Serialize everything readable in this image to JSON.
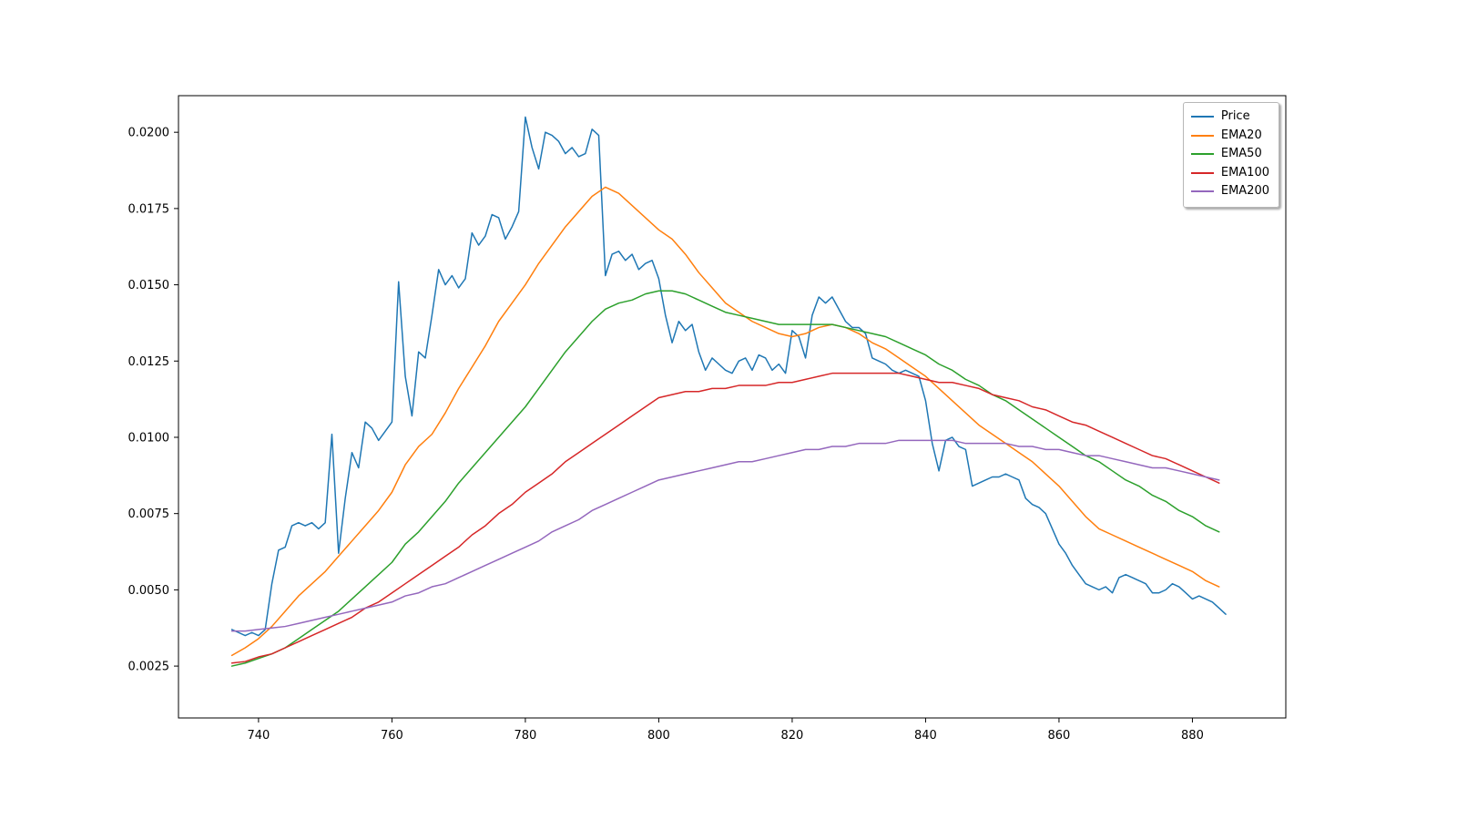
{
  "figure": {
    "background": "#ffffff"
  },
  "chart_data": {
    "type": "line",
    "title": "",
    "xlabel": "",
    "ylabel": "",
    "grid": false,
    "legend_position": "upper right",
    "axes_color": "#000000",
    "xlim": [
      728,
      894
    ],
    "ylim": [
      0.0008,
      0.0212
    ],
    "x_ticks": [
      740,
      760,
      780,
      800,
      820,
      840,
      860,
      880
    ],
    "x_tick_labels": [
      "740",
      "760",
      "780",
      "800",
      "820",
      "840",
      "860",
      "880"
    ],
    "y_ticks": [
      0.0025,
      0.005,
      0.0075,
      0.01,
      0.0125,
      0.015,
      0.0175,
      0.02
    ],
    "y_tick_labels": [
      "0.0025",
      "0.0050",
      "0.0075",
      "0.0100",
      "0.0125",
      "0.0150",
      "0.0175",
      "0.0200"
    ],
    "series": [
      {
        "name": "Price",
        "color": "#1f77b4",
        "x_start": 736,
        "x_step": 1,
        "y": [
          0.0037,
          0.0036,
          0.0035,
          0.0036,
          0.0035,
          0.0037,
          0.0052,
          0.0063,
          0.0064,
          0.0071,
          0.0072,
          0.0071,
          0.0072,
          0.007,
          0.0072,
          0.0101,
          0.0062,
          0.008,
          0.0095,
          0.009,
          0.0105,
          0.0103,
          0.0099,
          0.0102,
          0.0105,
          0.0151,
          0.012,
          0.0107,
          0.0128,
          0.0126,
          0.014,
          0.0155,
          0.015,
          0.0153,
          0.0149,
          0.0152,
          0.0167,
          0.0163,
          0.0166,
          0.0173,
          0.0172,
          0.0165,
          0.0169,
          0.0174,
          0.0205,
          0.0195,
          0.0188,
          0.02,
          0.0199,
          0.0197,
          0.0193,
          0.0195,
          0.0192,
          0.0193,
          0.0201,
          0.0199,
          0.0153,
          0.016,
          0.0161,
          0.0158,
          0.016,
          0.0155,
          0.0157,
          0.0158,
          0.0152,
          0.014,
          0.0131,
          0.0138,
          0.0135,
          0.0137,
          0.0128,
          0.0122,
          0.0126,
          0.0124,
          0.0122,
          0.0121,
          0.0125,
          0.0126,
          0.0122,
          0.0127,
          0.0126,
          0.0122,
          0.0124,
          0.0121,
          0.0135,
          0.0133,
          0.0126,
          0.014,
          0.0146,
          0.0144,
          0.0146,
          0.0142,
          0.0138,
          0.0136,
          0.0136,
          0.0134,
          0.0126,
          0.0125,
          0.0124,
          0.0122,
          0.0121,
          0.0122,
          0.0121,
          0.012,
          0.0112,
          0.0098,
          0.0089,
          0.0099,
          0.01,
          0.0097,
          0.0096,
          0.0084,
          0.0085,
          0.0086,
          0.0087,
          0.0087,
          0.0088,
          0.0087,
          0.0086,
          0.008,
          0.0078,
          0.0077,
          0.0075,
          0.007,
          0.0065,
          0.0062,
          0.0058,
          0.0055,
          0.0052,
          0.0051,
          0.005,
          0.0051,
          0.0049,
          0.0054,
          0.0055,
          0.0054,
          0.0053,
          0.0052,
          0.0049,
          0.0049,
          0.005,
          0.0052,
          0.0051,
          0.0049,
          0.0047,
          0.0048,
          0.0047,
          0.0046,
          0.0044,
          0.0042
        ]
      },
      {
        "name": "EMA20",
        "color": "#ff7f0e",
        "x_start": 736,
        "x_step": 2,
        "y": [
          0.00285,
          0.0031,
          0.0034,
          0.0038,
          0.0043,
          0.0048,
          0.0052,
          0.0056,
          0.0061,
          0.0066,
          0.0071,
          0.0076,
          0.0082,
          0.0091,
          0.0097,
          0.0101,
          0.0108,
          0.0116,
          0.0123,
          0.013,
          0.0138,
          0.0144,
          0.015,
          0.0157,
          0.0163,
          0.0169,
          0.0174,
          0.0179,
          0.0182,
          0.018,
          0.0176,
          0.0172,
          0.0168,
          0.0165,
          0.016,
          0.0154,
          0.0149,
          0.0144,
          0.0141,
          0.0138,
          0.0136,
          0.0134,
          0.0133,
          0.0134,
          0.0136,
          0.0137,
          0.0136,
          0.0134,
          0.0131,
          0.0129,
          0.0126,
          0.0123,
          0.012,
          0.0116,
          0.0112,
          0.0108,
          0.0104,
          0.0101,
          0.0098,
          0.0095,
          0.0092,
          0.0088,
          0.0084,
          0.0079,
          0.0074,
          0.007,
          0.0068,
          0.0066,
          0.0064,
          0.0062,
          0.006,
          0.0058,
          0.0056,
          0.0053,
          0.0051
        ]
      },
      {
        "name": "EMA50",
        "color": "#2ca02c",
        "x_start": 736,
        "x_step": 2,
        "y": [
          0.0025,
          0.0026,
          0.00275,
          0.0029,
          0.0031,
          0.0034,
          0.0037,
          0.004,
          0.0043,
          0.0047,
          0.0051,
          0.0055,
          0.0059,
          0.0065,
          0.0069,
          0.0074,
          0.0079,
          0.0085,
          0.009,
          0.0095,
          0.01,
          0.0105,
          0.011,
          0.0116,
          0.0122,
          0.0128,
          0.0133,
          0.0138,
          0.0142,
          0.0144,
          0.0145,
          0.0147,
          0.0148,
          0.0148,
          0.0147,
          0.0145,
          0.0143,
          0.0141,
          0.014,
          0.0139,
          0.0138,
          0.0137,
          0.0137,
          0.0137,
          0.0137,
          0.0137,
          0.0136,
          0.0135,
          0.0134,
          0.0133,
          0.0131,
          0.0129,
          0.0127,
          0.0124,
          0.0122,
          0.0119,
          0.0117,
          0.0114,
          0.0112,
          0.0109,
          0.0106,
          0.0103,
          0.01,
          0.0097,
          0.0094,
          0.0092,
          0.0089,
          0.0086,
          0.0084,
          0.0081,
          0.0079,
          0.0076,
          0.0074,
          0.0071,
          0.0069
        ]
      },
      {
        "name": "EMA100",
        "color": "#d62728",
        "x_start": 736,
        "x_step": 2,
        "y": [
          0.0026,
          0.00265,
          0.0028,
          0.0029,
          0.0031,
          0.0033,
          0.0035,
          0.0037,
          0.0039,
          0.0041,
          0.0044,
          0.0046,
          0.0049,
          0.0052,
          0.0055,
          0.0058,
          0.0061,
          0.0064,
          0.0068,
          0.0071,
          0.0075,
          0.0078,
          0.0082,
          0.0085,
          0.0088,
          0.0092,
          0.0095,
          0.0098,
          0.0101,
          0.0104,
          0.0107,
          0.011,
          0.0113,
          0.0114,
          0.0115,
          0.0115,
          0.0116,
          0.0116,
          0.0117,
          0.0117,
          0.0117,
          0.0118,
          0.0118,
          0.0119,
          0.012,
          0.0121,
          0.0121,
          0.0121,
          0.0121,
          0.0121,
          0.0121,
          0.012,
          0.0119,
          0.0118,
          0.0118,
          0.0117,
          0.0116,
          0.0114,
          0.0113,
          0.0112,
          0.011,
          0.0109,
          0.0107,
          0.0105,
          0.0104,
          0.0102,
          0.01,
          0.0098,
          0.0096,
          0.0094,
          0.0093,
          0.0091,
          0.0089,
          0.0087,
          0.0085
        ]
      },
      {
        "name": "EMA200",
        "color": "#9467bd",
        "x_start": 736,
        "x_step": 2,
        "y": [
          0.00365,
          0.00365,
          0.0037,
          0.00375,
          0.0038,
          0.0039,
          0.004,
          0.0041,
          0.0042,
          0.0043,
          0.0044,
          0.0045,
          0.0046,
          0.0048,
          0.0049,
          0.0051,
          0.0052,
          0.0054,
          0.0056,
          0.0058,
          0.006,
          0.0062,
          0.0064,
          0.0066,
          0.0069,
          0.0071,
          0.0073,
          0.0076,
          0.0078,
          0.008,
          0.0082,
          0.0084,
          0.0086,
          0.0087,
          0.0088,
          0.0089,
          0.009,
          0.0091,
          0.0092,
          0.0092,
          0.0093,
          0.0094,
          0.0095,
          0.0096,
          0.0096,
          0.0097,
          0.0097,
          0.0098,
          0.0098,
          0.0098,
          0.0099,
          0.0099,
          0.0099,
          0.0099,
          0.0099,
          0.0098,
          0.0098,
          0.0098,
          0.0098,
          0.0097,
          0.0097,
          0.0096,
          0.0096,
          0.0095,
          0.0094,
          0.0094,
          0.0093,
          0.0092,
          0.0091,
          0.009,
          0.009,
          0.0089,
          0.0088,
          0.0087,
          0.0086
        ]
      }
    ]
  }
}
